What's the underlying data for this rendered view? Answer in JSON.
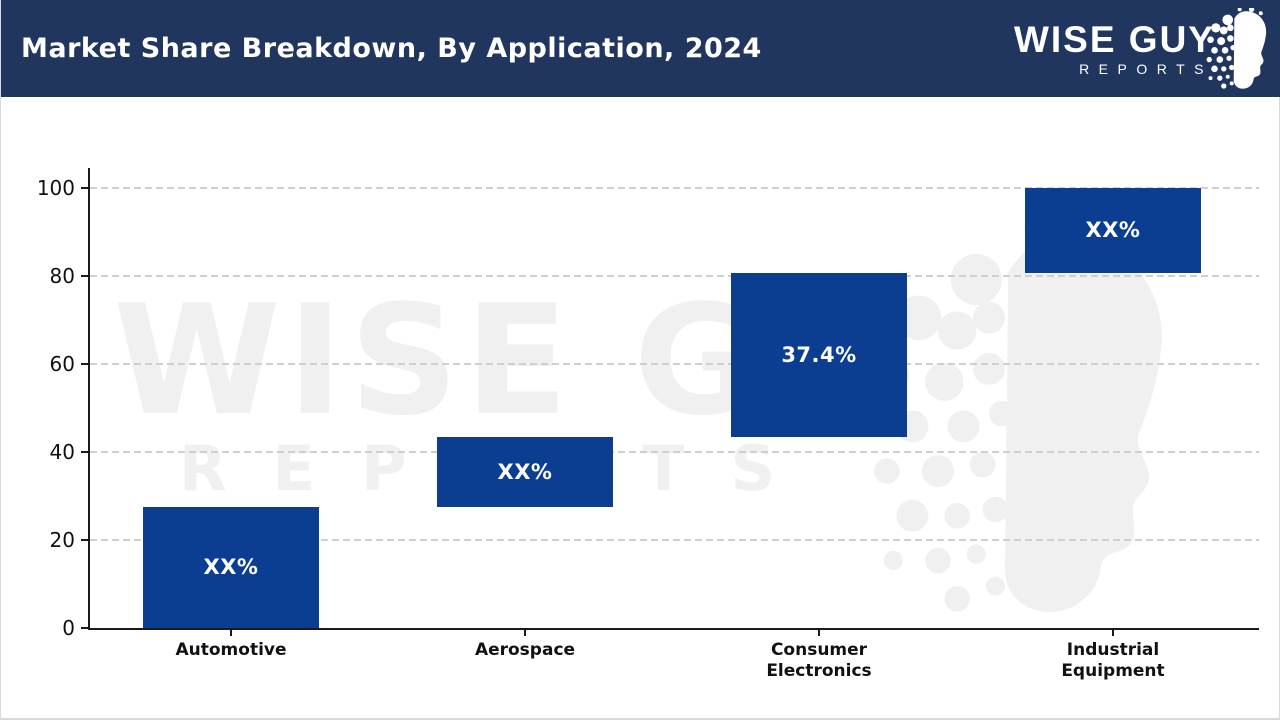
{
  "header": {
    "title": "Market Share Breakdown, By Application, 2024",
    "logo": {
      "line1": "WISE GUY",
      "line2": "REPORTS",
      "icon": "dotted-head-profile"
    }
  },
  "watermark": {
    "line1": "WISE GU",
    "line2": "REPORTS",
    "icon": "dotted-head-profile"
  },
  "colors": {
    "header_bg": "#21365f",
    "bar_fill": "#0b3e91",
    "bar_label_text": "#ffffff",
    "grid": "#cfcfcf",
    "axis": "#1a1a1a",
    "tick_text": "#111111",
    "watermark": "#f0f0f0",
    "frame_border": "#d9d9d9",
    "background": "#ffffff"
  },
  "chart_data": {
    "type": "bar",
    "subtype": "waterfall",
    "title": "Market Share Breakdown, By Application, 2024",
    "categories": [
      "Automotive",
      "Aerospace",
      "Consumer\nElectronics",
      "Industrial\nEquipment"
    ],
    "segments": [
      {
        "category": "Automotive",
        "start": 0,
        "end": 27.6,
        "label": "XX%"
      },
      {
        "category": "Aerospace",
        "start": 27.6,
        "end": 43.3,
        "label": "XX%"
      },
      {
        "category": "Consumer Electronics",
        "start": 43.3,
        "end": 80.7,
        "label": "37.4%"
      },
      {
        "category": "Industrial Equipment",
        "start": 80.7,
        "end": 100,
        "label": "XX%"
      }
    ],
    "ylim": [
      0,
      100
    ],
    "yticks": [
      0,
      20,
      40,
      60,
      80,
      100
    ],
    "xlabel": "",
    "ylabel": "",
    "grid": "dashed-horizontal",
    "legend": "none",
    "bar_color": "#0b3e91",
    "label_color": "#ffffff"
  }
}
